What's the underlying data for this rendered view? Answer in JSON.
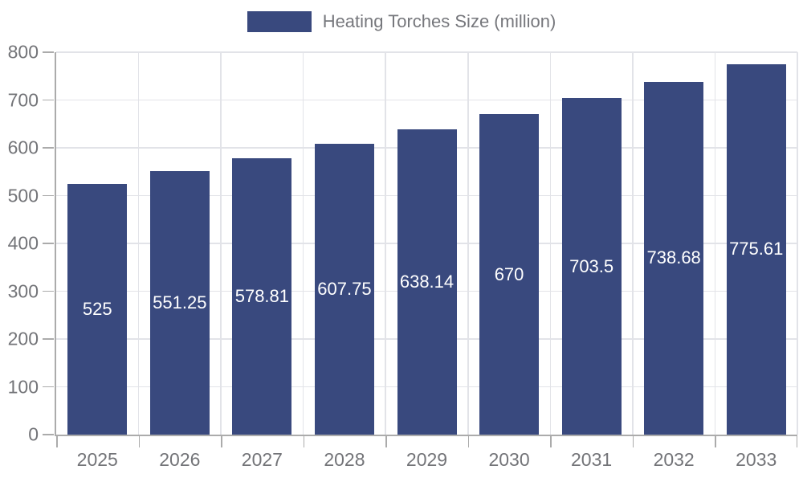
{
  "chart_data": {
    "type": "bar",
    "title": "Heating Torches Size (million)",
    "legend_entries": [
      "Heating Torches Size (million)"
    ],
    "legend_position": "top",
    "categories": [
      "2025",
      "2026",
      "2027",
      "2028",
      "2029",
      "2030",
      "2031",
      "2032",
      "2033"
    ],
    "values": [
      525,
      551.25,
      578.81,
      607.75,
      638.14,
      670,
      703.5,
      738.68,
      775.61
    ],
    "value_labels": [
      "525",
      "551.25",
      "578.81",
      "607.75",
      "638.14",
      "670",
      "703.5",
      "738.68",
      "775.61"
    ],
    "xlabel": "",
    "ylabel": "",
    "ylim": [
      0,
      800
    ],
    "ytick_interval": 100,
    "ytick_labels": [
      "0",
      "100",
      "200",
      "300",
      "400",
      "500",
      "600",
      "700",
      "800"
    ],
    "grid": true,
    "colors": {
      "bar": "#39497E",
      "grid": "#E2E3E8",
      "axis": "#ABABAB",
      "axis_text": "#737478",
      "legend_text": "#76777C",
      "value_text": "#FFFFFF",
      "background": "#FFFFFF"
    }
  }
}
